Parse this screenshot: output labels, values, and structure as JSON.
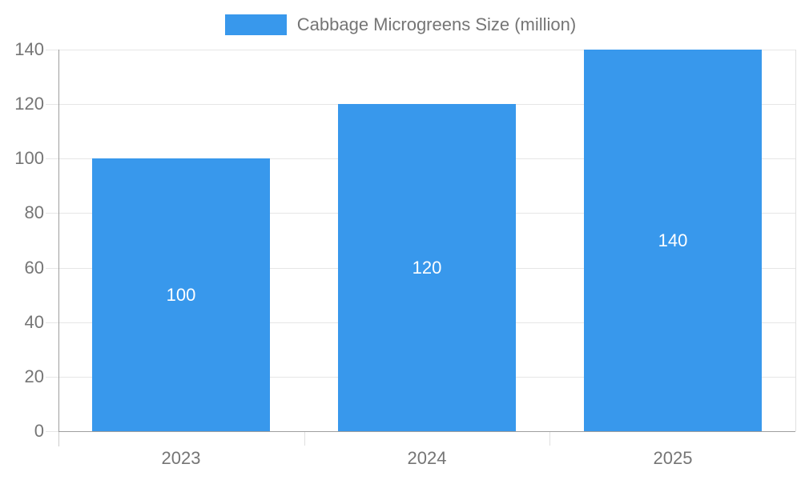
{
  "chart_data": {
    "type": "bar",
    "title": "Cabbage Microgreens Size (million)",
    "legend_position": "top",
    "categories": [
      "2023",
      "2024",
      "2025"
    ],
    "series": [
      {
        "name": "Cabbage Microgreens Size (million)",
        "values": [
          100,
          120,
          140
        ],
        "data_labels": [
          "100",
          "120",
          "140"
        ]
      }
    ],
    "xlabel": "",
    "ylabel": "",
    "ylim": [
      0,
      140
    ],
    "yticks": [
      0,
      20,
      40,
      60,
      80,
      100,
      120,
      140
    ],
    "grid": true,
    "data_labels_inside_bars": true,
    "colors": {
      "bar": "#3898ec",
      "axis_text": "#757575",
      "data_label_text": "#ffffff",
      "gridline": "#e6e6e6",
      "axis_line": "#9e9e9e",
      "minor_tick": "#cccccc",
      "plot_border": "#e0e0e0"
    }
  }
}
